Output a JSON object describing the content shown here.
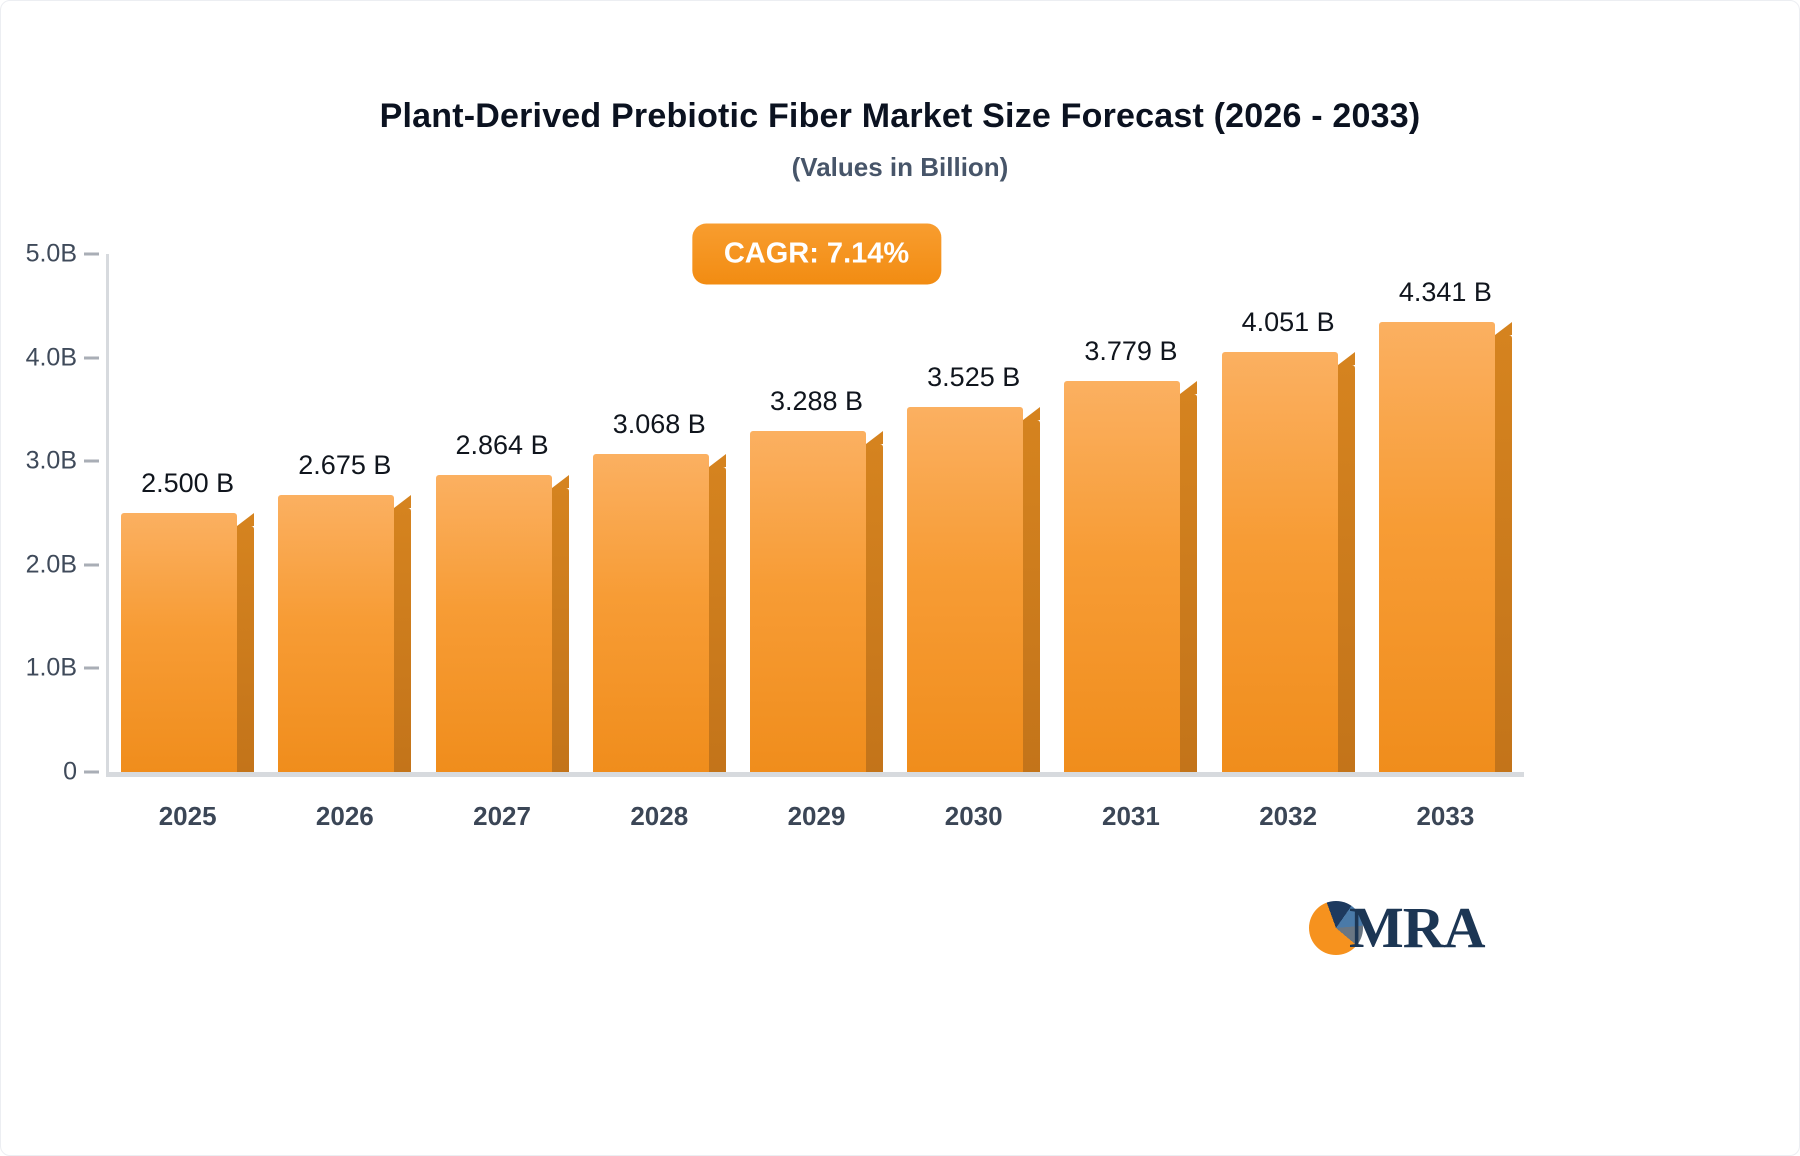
{
  "title": "Plant-Derived Prebiotic Fiber Market Size Forecast (2026 - 2033)",
  "subtitle": "(Values in Billion)",
  "badge": {
    "label": "CAGR: 7.14%",
    "color": "#f6921e"
  },
  "logo": {
    "text": "MRA"
  },
  "chart_data": {
    "type": "bar",
    "title": "Plant-Derived Prebiotic Fiber Market Size Forecast (2026 - 2033)",
    "subtitle": "(Values in Billion)",
    "categories": [
      "2025",
      "2026",
      "2027",
      "2028",
      "2029",
      "2030",
      "2031",
      "2032",
      "2033"
    ],
    "values": [
      2.5,
      2.675,
      2.864,
      3.068,
      3.288,
      3.525,
      3.779,
      4.051,
      4.341
    ],
    "value_labels": [
      "2.500 B",
      "2.675 B",
      "2.864 B",
      "3.068 B",
      "3.288 B",
      "3.525 B",
      "3.779 B",
      "4.051 B",
      "4.341 B"
    ],
    "xlabel": "",
    "ylabel": "",
    "ylim": [
      0,
      5
    ],
    "yticks": [
      {
        "value": 5,
        "label": "5.0B"
      },
      {
        "value": 4,
        "label": "4.0B"
      },
      {
        "value": 3,
        "label": "3.0B"
      },
      {
        "value": 2,
        "label": "2.0B"
      },
      {
        "value": 1,
        "label": "1.0B"
      },
      {
        "value": 0,
        "label": "0"
      }
    ],
    "grid": false,
    "legend": "none",
    "annotation": "CAGR: 7.14%",
    "bar_color_top": "#fbb061",
    "bar_color_bottom": "#f08d1c",
    "bar_side_color": "#c3741a"
  }
}
